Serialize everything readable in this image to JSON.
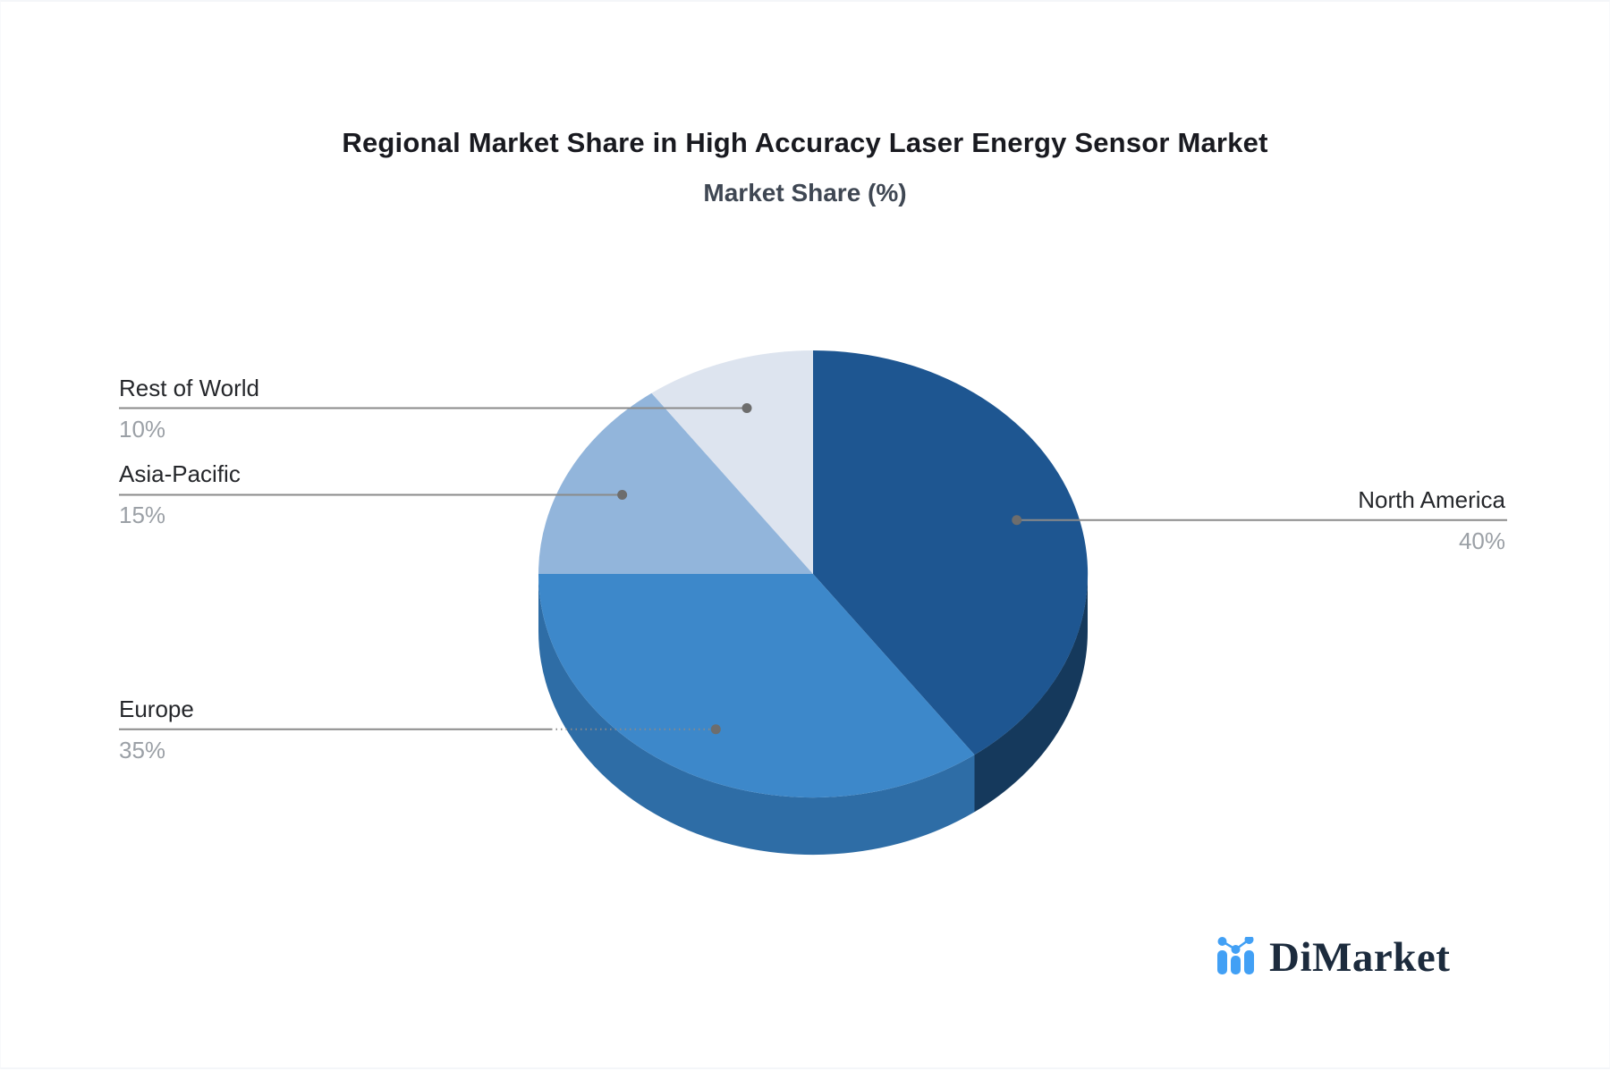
{
  "title": "Regional Market Share in High Accuracy Laser Energy Sensor Market",
  "subtitle": "Market Share (%)",
  "brand": {
    "name": "DiMarket",
    "icon": "bar-line-chart-icon",
    "icon_color": "#42a0f5",
    "text_color": "#1c2b3d"
  },
  "chart_data": {
    "type": "pie",
    "style": "3d",
    "title": "Regional Market Share in High Accuracy Laser Energy Sensor Market",
    "subtitle": "Market Share (%)",
    "unit": "%",
    "labels": [
      "North America",
      "Europe",
      "Asia-Pacific",
      "Rest of World"
    ],
    "values": [
      40,
      35,
      15,
      10
    ],
    "display_values": [
      "40%",
      "35%",
      "15%",
      "10%"
    ],
    "colors": [
      "#1e5691",
      "#3d88ca",
      "#92b5db",
      "#dde4ef"
    ],
    "side_colors": [
      "#15395c",
      "#2e6da6",
      "#6f94bd",
      "#b9c6d8"
    ],
    "start_angle_deg": 0,
    "direction": "clockwise",
    "legend": "none",
    "label_style": {
      "name_color": "#25272b",
      "value_color": "#9ba0a6",
      "leader_line_color": "#8a8a8a",
      "leader_dot_color": "#6d6d6d"
    }
  }
}
